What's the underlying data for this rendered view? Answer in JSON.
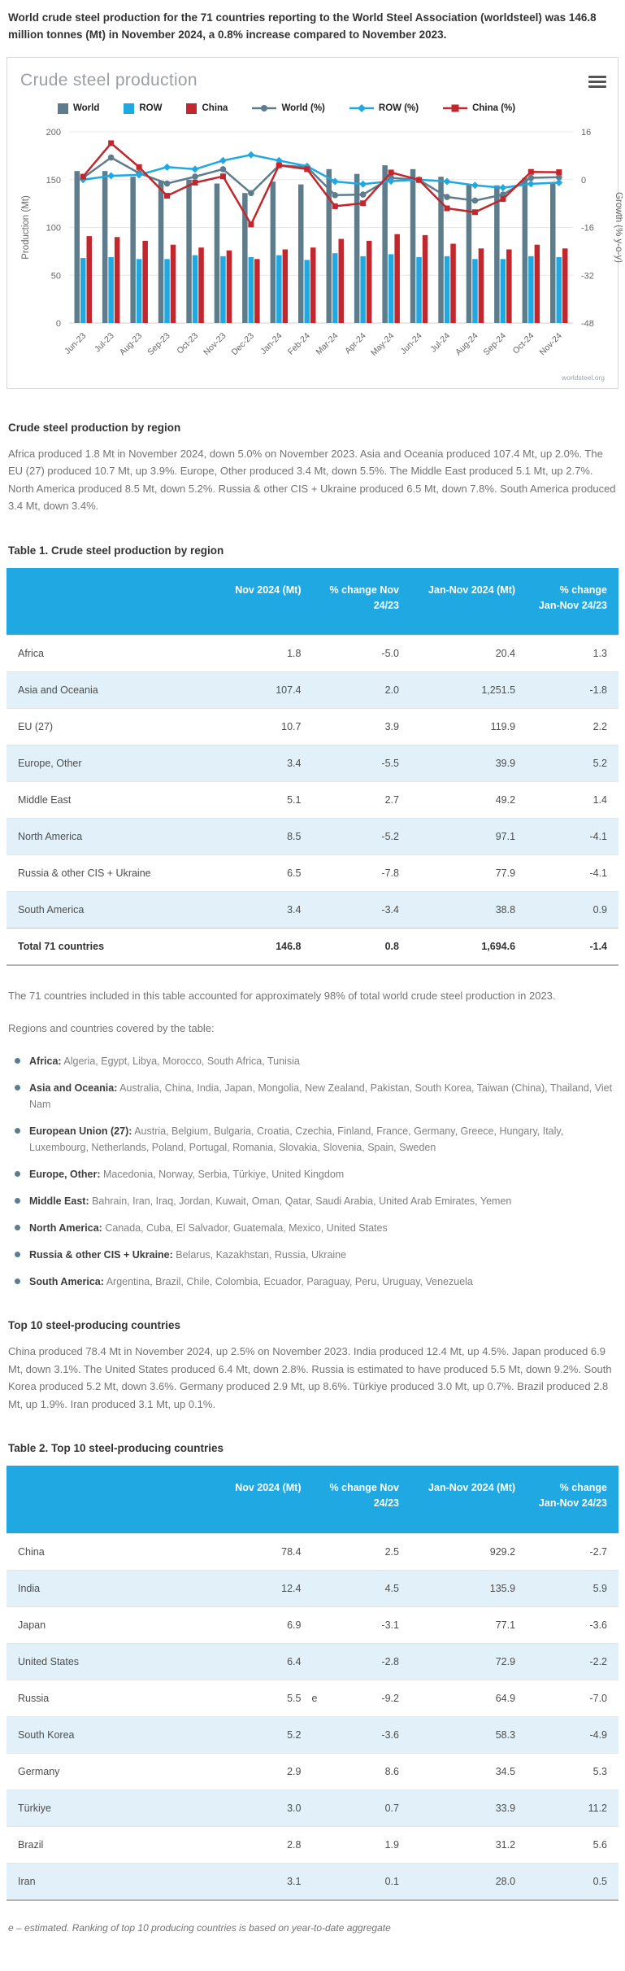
{
  "intro": "World crude steel production for the 71 countries reporting to the World Steel Association (worldsteel) was 146.8 million tonnes (Mt) in November 2024, a 0.8% increase compared to November 2023.",
  "theme": {
    "table_header_blue": "#1FA8E1",
    "row_stripe_blue": "#E2F1F9",
    "world_color": "#5E7D8C",
    "row_color": "#1FA8E1",
    "china_color": "#C1272D"
  },
  "chart": {
    "title": "Crude steel production",
    "source": "worldsteel.org",
    "menu_icon": "hamburger-icon"
  },
  "chart_data": {
    "type": "bar",
    "subtype": "combo-bar-line-dual-axis",
    "title": "Crude steel production",
    "categories": [
      "Jun-23",
      "Jul-23",
      "Aug-23",
      "Sep-23",
      "Oct-23",
      "Nov-23",
      "Dec-23",
      "Jan-24",
      "Feb-24",
      "Mar-24",
      "Apr-24",
      "May-24",
      "Jun-24",
      "Jul-24",
      "Aug-24",
      "Sep-24",
      "Oct-24",
      "Nov-24"
    ],
    "series": [
      {
        "name": "World",
        "kind": "bar",
        "axis": "left",
        "color": "#5E7D8C",
        "values": [
          159,
          159,
          153,
          149,
          150,
          146,
          136,
          148,
          145,
          161,
          156,
          165,
          161,
          153,
          145,
          144,
          152,
          147
        ]
      },
      {
        "name": "ROW",
        "kind": "bar",
        "axis": "left",
        "color": "#1FA8E1",
        "values": [
          68,
          69,
          67,
          67,
          71,
          70,
          69,
          71,
          66,
          73,
          70,
          72,
          69,
          70,
          67,
          67,
          70,
          69
        ]
      },
      {
        "name": "China",
        "kind": "bar",
        "axis": "left",
        "color": "#C1272D",
        "values": [
          91,
          90,
          86,
          82,
          79,
          76,
          67,
          77,
          79,
          88,
          86,
          93,
          92,
          83,
          78,
          77,
          82,
          78
        ]
      },
      {
        "name": "World (%)",
        "kind": "line",
        "marker": "circle",
        "axis": "right",
        "color": "#5E7D8C",
        "values": [
          0.6,
          7.4,
          2.2,
          -1.3,
          1.0,
          3.5,
          -4.5,
          4.8,
          4.2,
          -5.2,
          -5.0,
          0.6,
          -0.1,
          -5.8,
          -7.0,
          -5.0,
          0.6,
          0.8
        ]
      },
      {
        "name": "ROW (%)",
        "kind": "line",
        "marker": "diamond",
        "axis": "right",
        "color": "#1FA8E1",
        "values": [
          0.0,
          1.3,
          1.6,
          4.2,
          3.5,
          6.4,
          8.3,
          6.4,
          4.5,
          -0.6,
          -1.5,
          -0.5,
          0.0,
          -0.6,
          -1.9,
          -2.7,
          -1.4,
          -1.0
        ]
      },
      {
        "name": "China (%)",
        "kind": "line",
        "marker": "square",
        "axis": "right",
        "color": "#C1272D",
        "values": [
          1.0,
          12.2,
          4.2,
          -5.4,
          -1.0,
          1.1,
          -15.0,
          4.8,
          3.5,
          -8.9,
          -7.9,
          2.4,
          -0.1,
          -9.6,
          -10.9,
          -6.5,
          2.6,
          2.5
        ]
      }
    ],
    "left_axis": {
      "label": "Production (Mt)",
      "min": 0,
      "max": 200,
      "ticks": [
        0,
        50,
        100,
        150,
        200
      ]
    },
    "right_axis": {
      "label": "Growth (% y-o-y)",
      "min": -48,
      "max": 16,
      "ticks": [
        16,
        0,
        -16,
        -32,
        -48
      ]
    },
    "grid": true,
    "legend_position": "top",
    "source": "worldsteel.org"
  },
  "region_section": {
    "heading": "Crude steel production by region",
    "paragraph": "Africa produced 1.8 Mt in November 2024, down 5.0% on November 2023. Asia and Oceania produced 107.4 Mt, up 2.0%. The EU (27) produced 10.7 Mt, up 3.9%. Europe, Other produced 3.4 Mt, down 5.5%. The Middle East produced 5.1 Mt, up 2.7%. North America produced 8.5 Mt, down 5.2%. Russia & other CIS + Ukraine produced 6.5 Mt, down 7.8%. South America produced 3.4 Mt, down 3.4%."
  },
  "table1": {
    "title": "Table 1. Crude steel production by region",
    "columns": [
      "",
      "Nov 2024 (Mt)",
      "% change Nov 24/23",
      "Jan-Nov 2024 (Mt)",
      "% change Jan-Nov 24/23"
    ],
    "rows": [
      {
        "name": "Africa",
        "values": [
          "1.8",
          "-5.0",
          "20.4",
          "1.3"
        ]
      },
      {
        "name": "Asia and Oceania",
        "values": [
          "107.4",
          "2.0",
          "1,251.5",
          "-1.8"
        ]
      },
      {
        "name": "EU (27)",
        "values": [
          "10.7",
          "3.9",
          "119.9",
          "2.2"
        ]
      },
      {
        "name": "Europe, Other",
        "values": [
          "3.4",
          "-5.5",
          "39.9",
          "5.2"
        ]
      },
      {
        "name": "Middle East",
        "values": [
          "5.1",
          "2.7",
          "49.2",
          "1.4"
        ]
      },
      {
        "name": "North America",
        "values": [
          "8.5",
          "-5.2",
          "97.1",
          "-4.1"
        ]
      },
      {
        "name": "Russia & other CIS + Ukraine",
        "values": [
          "6.5",
          "-7.8",
          "77.9",
          "-4.1"
        ]
      },
      {
        "name": "South America",
        "values": [
          "3.4",
          "-3.4",
          "38.8",
          "0.9"
        ]
      }
    ],
    "total_row": {
      "name": "Total 71 countries",
      "values": [
        "146.8",
        "0.8",
        "1,694.6",
        "-1.4"
      ]
    }
  },
  "notes": {
    "coverage": "The 71 countries included in this table accounted for approximately 98% of total world crude steel production in 2023.",
    "regions_intro": "Regions and countries covered by the table:"
  },
  "regions_list": [
    {
      "label": "Africa:",
      "text": "Algeria, Egypt, Libya, Morocco, South Africa, Tunisia"
    },
    {
      "label": "Asia and Oceania:",
      "text": "Australia, China, India, Japan, Mongolia, New Zealand, Pakistan, South Korea, Taiwan (China), Thailand, Viet Nam"
    },
    {
      "label": "European Union (27):",
      "text": "Austria, Belgium, Bulgaria, Croatia, Czechia, Finland, France, Germany, Greece, Hungary, Italy, Luxembourg, Netherlands, Poland, Portugal, Romania, Slovakia, Slovenia, Spain, Sweden"
    },
    {
      "label": "Europe, Other:",
      "text": "Macedonia, Norway, Serbia, Türkiye, United Kingdom"
    },
    {
      "label": "Middle East:",
      "text": "Bahrain, Iran, Iraq, Jordan, Kuwait, Oman, Qatar, Saudi Arabia, United Arab Emirates, Yemen"
    },
    {
      "label": "North America:",
      "text": "Canada, Cuba, El Salvador, Guatemala, Mexico, United States"
    },
    {
      "label": "Russia & other CIS + Ukraine:",
      "text": "Belarus, Kazakhstan, Russia, Ukraine"
    },
    {
      "label": "South America:",
      "text": "Argentina, Brazil, Chile, Colombia, Ecuador, Paraguay, Peru, Uruguay, Venezuela"
    }
  ],
  "top10_section": {
    "heading": "Top 10 steel-producing countries",
    "paragraph": "China produced 78.4 Mt in November 2024, up 2.5% on November 2023. India produced 12.4 Mt, up 4.5%. Japan produced 6.9 Mt, down 3.1%. The United States produced 6.4 Mt, down 2.8%. Russia is estimated to have produced 5.5 Mt, down 9.2%. South Korea produced 5.2 Mt, down 3.6%. Germany produced 2.9 Mt, up 8.6%. Türkiye produced 3.0 Mt, up 0.7%. Brazil produced 2.8 Mt, up 1.9%. Iran produced 3.1 Mt, up 0.1%."
  },
  "table2": {
    "title": "Table 2. Top 10 steel-producing countries",
    "columns": [
      "",
      "Nov 2024 (Mt)",
      "% change Nov 24/23",
      "Jan-Nov 2024 (Mt)",
      "% change Jan-Nov 24/23"
    ],
    "rows": [
      {
        "name": "China",
        "values": [
          "78.4",
          "2.5",
          "929.2",
          "-2.7"
        ]
      },
      {
        "name": "India",
        "values": [
          "12.4",
          "4.5",
          "135.9",
          "5.9"
        ]
      },
      {
        "name": "Japan",
        "values": [
          "6.9",
          "-3.1",
          "77.1",
          "-3.6"
        ]
      },
      {
        "name": "United States",
        "values": [
          "6.4",
          "-2.8",
          "72.9",
          "-2.2"
        ]
      },
      {
        "name": "Russia",
        "values": [
          "5.5",
          "-9.2",
          "64.9",
          "-7.0"
        ],
        "note": "e"
      },
      {
        "name": "South Korea",
        "values": [
          "5.2",
          "-3.6",
          "58.3",
          "-4.9"
        ]
      },
      {
        "name": "Germany",
        "values": [
          "2.9",
          "8.6",
          "34.5",
          "5.3"
        ]
      },
      {
        "name": "Türkiye",
        "values": [
          "3.0",
          "0.7",
          "33.9",
          "11.2"
        ]
      },
      {
        "name": "Brazil",
        "values": [
          "2.8",
          "1.9",
          "31.2",
          "5.6"
        ]
      },
      {
        "name": "Iran",
        "values": [
          "3.1",
          "0.1",
          "28.0",
          "0.5"
        ]
      }
    ]
  },
  "footnote": "e – estimated. Ranking of top 10 producing countries is based on year-to-date aggregate"
}
